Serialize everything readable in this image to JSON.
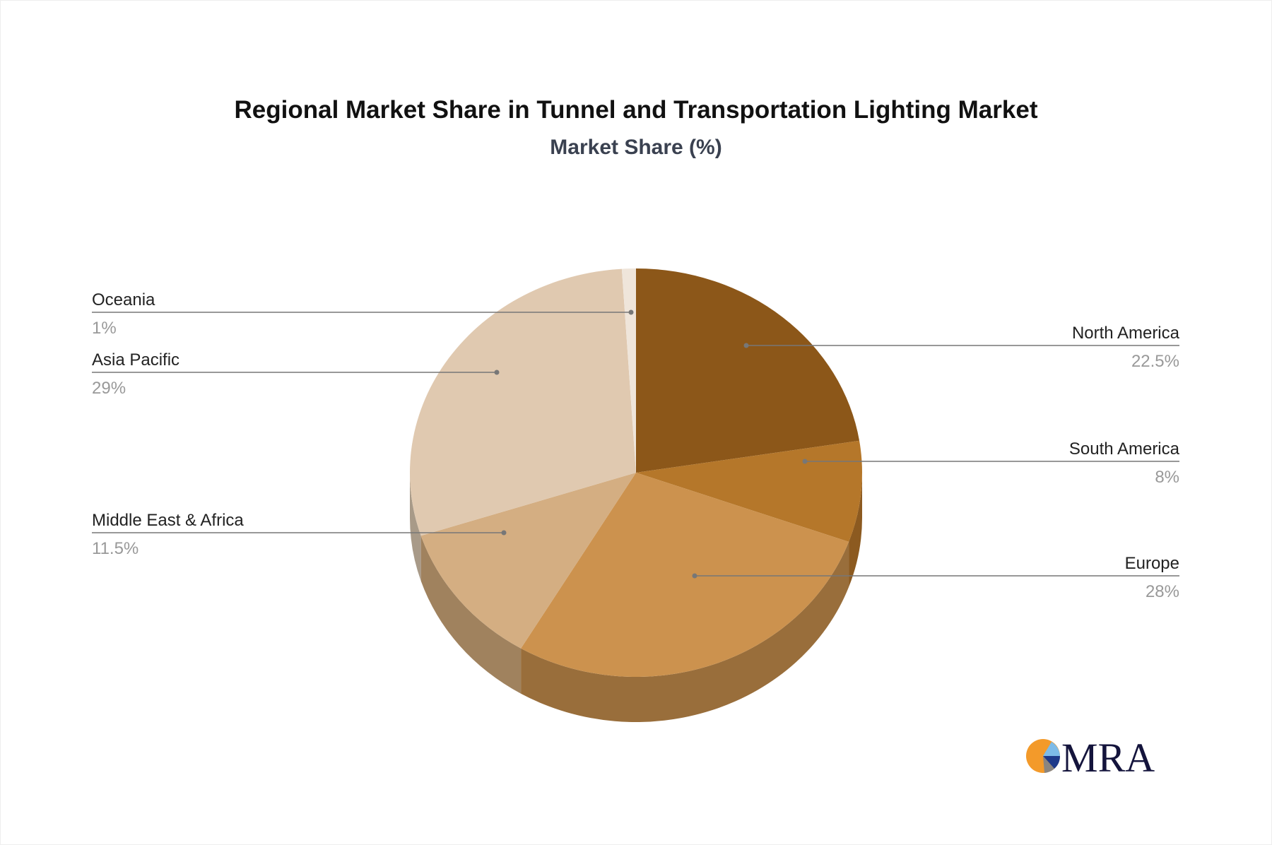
{
  "chart_data": {
    "type": "pie",
    "title": "Regional Market Share in Tunnel and Transportation Lighting Market",
    "subtitle": "Market Share (%)",
    "style": "3d",
    "slices": [
      {
        "label": "North America",
        "value": 22.5,
        "display": "22.5%",
        "color": "#8c5719",
        "side_color": "#7a4e1c",
        "label_side": "right"
      },
      {
        "label": "South America",
        "value": 8,
        "display": "8%",
        "color": "#b5772a",
        "side_color": "#8c5a20",
        "label_side": "right"
      },
      {
        "label": "Europe",
        "value": 28,
        "display": "28%",
        "color": "#cc924e",
        "side_color": "#996e3b",
        "label_side": "right"
      },
      {
        "label": "Middle East & Africa",
        "value": 11.5,
        "display": "11.5%",
        "color": "#d4ae82",
        "side_color": "#a0825e",
        "label_side": "left"
      },
      {
        "label": "Asia Pacific",
        "value": 29,
        "display": "29%",
        "color": "#e0c9b0",
        "side_color": "#a89a88",
        "label_side": "left"
      },
      {
        "label": "Oceania",
        "value": 1,
        "display": "1%",
        "color": "#efe5da",
        "side_color": "#b8aea4",
        "label_side": "left"
      }
    ]
  },
  "logo": {
    "text": "MRA",
    "colors": [
      "#f39a2a",
      "#7dbbe8",
      "#1e3a8a",
      "#8a8580",
      "#14143c"
    ]
  }
}
